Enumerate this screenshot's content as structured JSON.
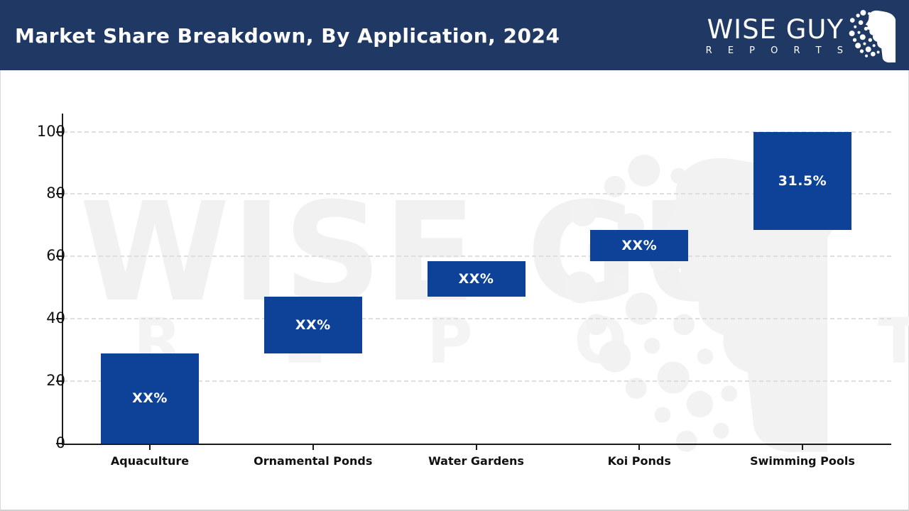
{
  "header": {
    "title": "Market Share Breakdown, By Application, 2024",
    "bg_color": "#1f3864",
    "logo": {
      "line1": "WISE GUY",
      "line2": "R E P O R T S",
      "head_icon": "dotted-head-profile-icon",
      "color": "#ffffff"
    }
  },
  "watermark": {
    "line1": "WISE GUY",
    "line2": "R E P O R T S",
    "head_icon": "dotted-head-profile-icon",
    "color": "#f1f1f1"
  },
  "chart_data": {
    "type": "bar",
    "subtype": "waterfall",
    "title": "Market Share Breakdown, By Application, 2024",
    "categories": [
      "Aquaculture",
      "Ornamental Ponds",
      "Water Gardens",
      "Koi Ponds",
      "Swimming Pools"
    ],
    "segments": [
      {
        "category": "Aquaculture",
        "start": 0,
        "end": 29,
        "label": "XX%"
      },
      {
        "category": "Ornamental Ponds",
        "start": 29,
        "end": 47,
        "label": "XX%"
      },
      {
        "category": "Water Gardens",
        "start": 47,
        "end": 58.5,
        "label": "XX%"
      },
      {
        "category": "Koi Ponds",
        "start": 58.5,
        "end": 68.5,
        "label": "XX%"
      },
      {
        "category": "Swimming Pools",
        "start": 68.5,
        "end": 100,
        "label": "31.5%"
      }
    ],
    "yticks": [
      0,
      20,
      40,
      60,
      80,
      100
    ],
    "ylim": [
      0,
      105
    ],
    "xlabel": "",
    "ylabel": "",
    "bar_color": "#0d4298",
    "grid": "dashed-horizontal",
    "grid_color": "#dedede",
    "axis_color": "#1a1a1a",
    "legend": "none"
  }
}
